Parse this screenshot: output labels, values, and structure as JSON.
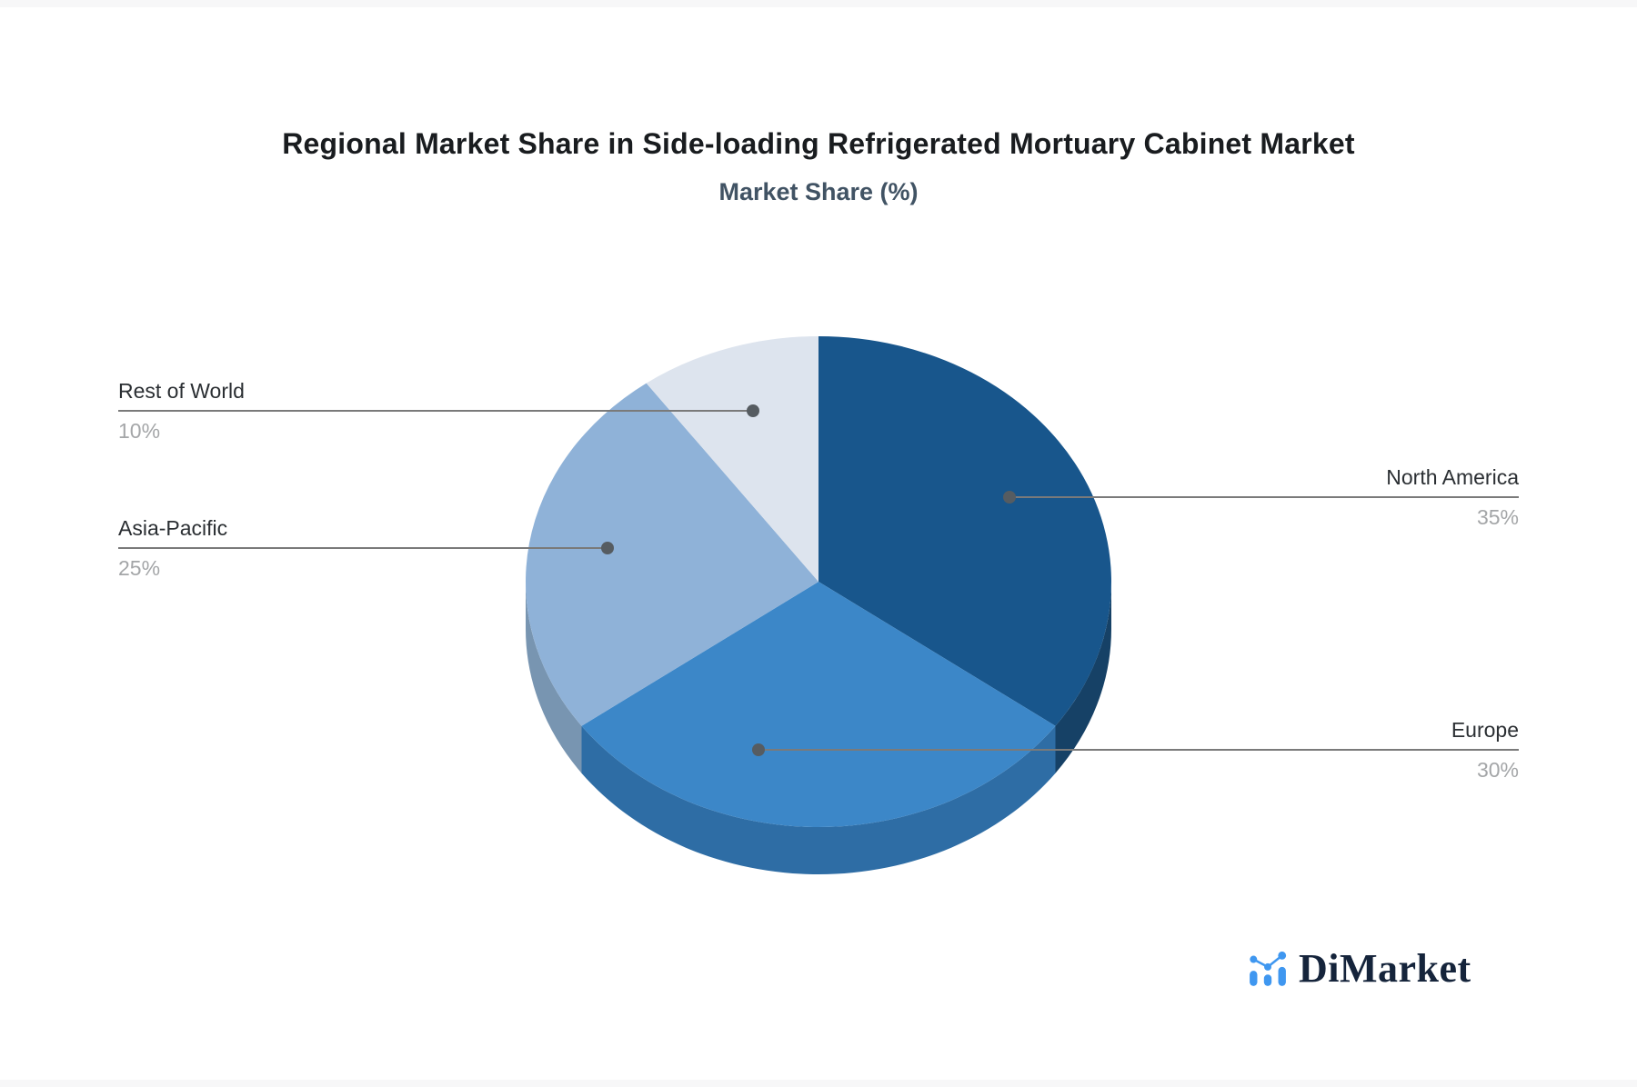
{
  "header": {
    "title": "Regional Market Share in Side-loading Refrigerated Mortuary Cabinet Market",
    "subtitle": "Market Share (%)"
  },
  "chart_data": {
    "type": "pie",
    "style": "3d",
    "title": "Regional Market Share in Side-loading Refrigerated Mortuary Cabinet Market",
    "subtitle": "Market Share (%)",
    "unit": "%",
    "start_angle_deg": 0,
    "direction": "clockwise",
    "legend_position": "callout-labels",
    "segments": [
      {
        "label": "North America",
        "value": 35,
        "pct_label": "35%",
        "color": "#18568c",
        "side_color": "#164166",
        "label_side": "right"
      },
      {
        "label": "Europe",
        "value": 30,
        "pct_label": "30%",
        "color": "#3c87c8",
        "side_color": "#2e6da5",
        "label_side": "right"
      },
      {
        "label": "Asia-Pacific",
        "value": 25,
        "pct_label": "25%",
        "color": "#8fb2d8",
        "side_color": "#7895b1",
        "label_side": "left"
      },
      {
        "label": "Rest of World",
        "value": 10,
        "pct_label": "10%",
        "color": "#dde4ee",
        "side_color": "#c5d0de",
        "label_side": "left"
      }
    ]
  },
  "branding": {
    "logo_text": "DiMarket"
  },
  "colors": {
    "title": "#191c1f",
    "subtitle": "#415364",
    "callout_line": "#7a7a7a",
    "callout_dot": "#565c61",
    "label_name": "#2b2f33",
    "label_pct": "#a4a6a8",
    "logo_text": "#15243b",
    "logo_icon_blue": "#3f97f0"
  }
}
